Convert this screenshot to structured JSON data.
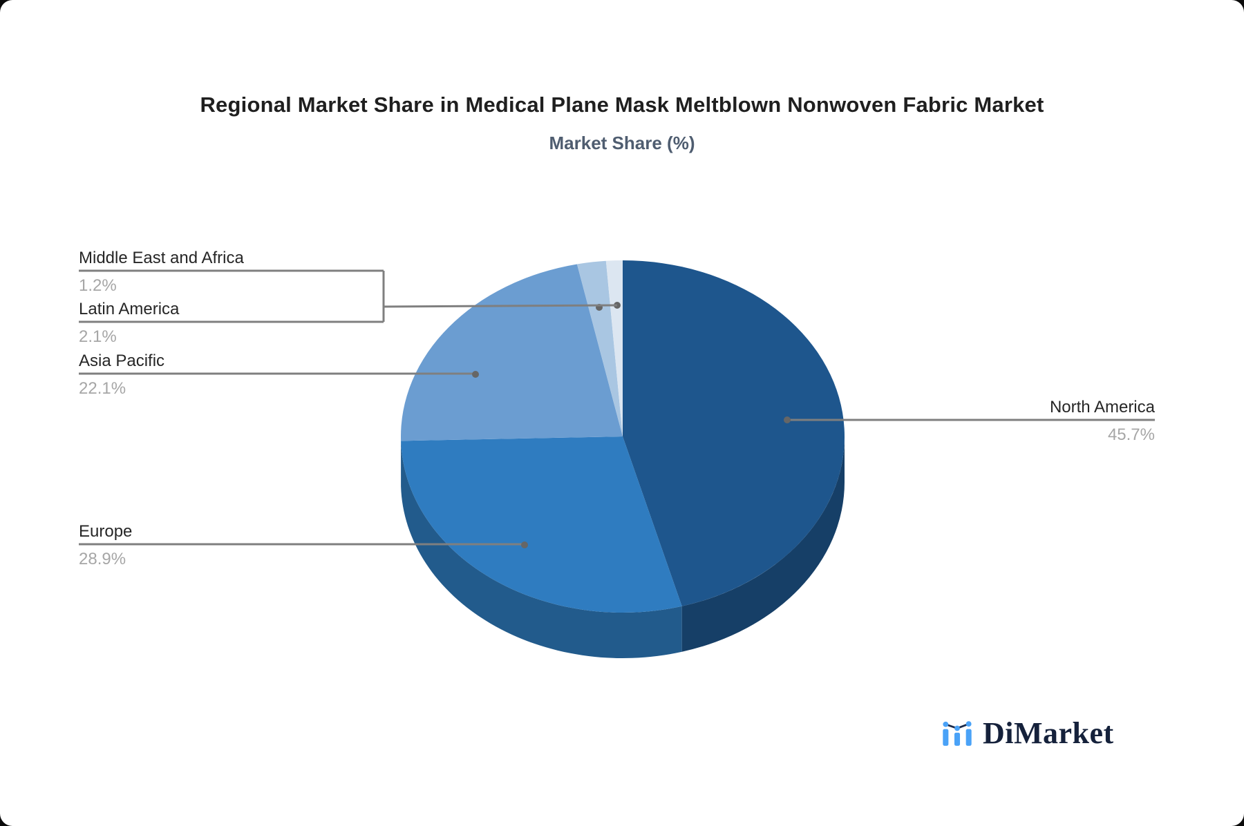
{
  "chart_data": {
    "type": "pie",
    "title": "Regional Market Share in Medical Plane Mask Meltblown Nonwoven Fabric Market",
    "subtitle": "Market Share (%)",
    "unit": "%",
    "style": "pie3d",
    "legend_position": "callout-labels",
    "label_color": "#262626",
    "value_color": "#a6a6a6",
    "line_color": "#7f7f7f",
    "dot_color": "#666666",
    "slices": [
      {
        "label": "North America",
        "value": 45.7,
        "color": "#1e568d"
      },
      {
        "label": "Europe",
        "value": 28.9,
        "color": "#2f7cc0"
      },
      {
        "label": "Asia Pacific",
        "value": 22.1,
        "color": "#6b9dd1"
      },
      {
        "label": "Latin America",
        "value": 2.1,
        "color": "#a9c6e2"
      },
      {
        "label": "Middle East and Africa",
        "value": 1.2,
        "color": "#dce6f1"
      }
    ]
  },
  "logo": {
    "text": "DiMarket",
    "icon": "mini-bar-line-chart-icon",
    "icon_color": "#4aa2f7",
    "text_color": "#15213b"
  }
}
